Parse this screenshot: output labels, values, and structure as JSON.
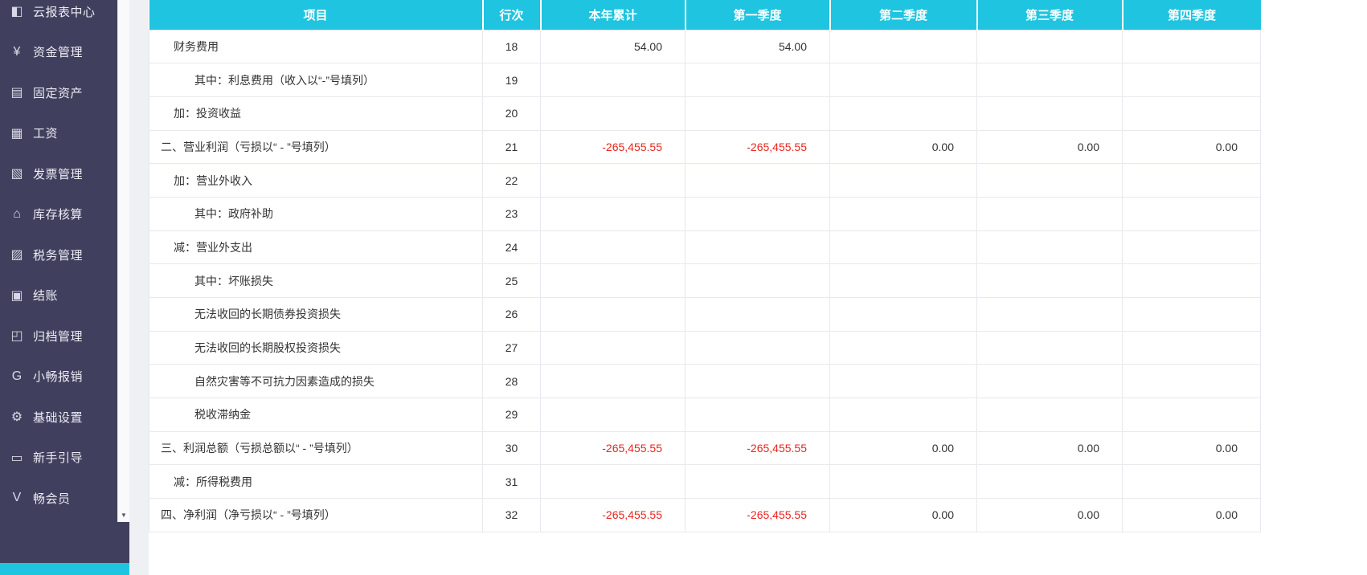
{
  "colors": {
    "accent_cyan": "#1fc4e0",
    "sidebar_bg": "#40405e",
    "negative_red": "#e8261f",
    "row_border": "#e8e8ee",
    "text_dark": "#333333"
  },
  "sidebar": {
    "items": [
      {
        "id": "cloud-report-center",
        "label": "云报表中心",
        "icon": "cloud-report-icon",
        "glyph": "◧"
      },
      {
        "id": "fund-management",
        "label": "资金管理",
        "icon": "fund-money-icon",
        "glyph": "¥"
      },
      {
        "id": "fixed-assets",
        "label": "固定资产",
        "icon": "fixed-assets-icon",
        "glyph": "▤"
      },
      {
        "id": "salary",
        "label": "工资",
        "icon": "salary-icon",
        "glyph": "▦"
      },
      {
        "id": "invoice-management",
        "label": "发票管理",
        "icon": "invoice-icon",
        "glyph": "▧"
      },
      {
        "id": "inventory-accounting",
        "label": "库存核算",
        "icon": "inventory-icon",
        "glyph": "⌂"
      },
      {
        "id": "tax-management",
        "label": "税务管理",
        "icon": "tax-icon",
        "glyph": "▨"
      },
      {
        "id": "closing",
        "label": "结账",
        "icon": "closing-icon",
        "glyph": "▣"
      },
      {
        "id": "archive-management",
        "label": "归档管理",
        "icon": "archive-icon",
        "glyph": "◰"
      },
      {
        "id": "xiaochang-reimburse",
        "label": "小畅报销",
        "icon": "reimburse-icon",
        "glyph": "G"
      },
      {
        "id": "basic-settings",
        "label": "基础设置",
        "icon": "settings-gear-icon",
        "glyph": "⚙"
      },
      {
        "id": "novice-guide",
        "label": "新手引导",
        "icon": "guide-icon",
        "glyph": "▭"
      },
      {
        "id": "chang-member",
        "label": "畅会员",
        "icon": "member-icon",
        "glyph": "V"
      }
    ],
    "scrollbar": {
      "arrow_glyph": "▼"
    }
  },
  "table": {
    "headers": [
      "项目",
      "行次",
      "本年累计",
      "第一季度",
      "第二季度",
      "第三季度",
      "第四季度"
    ],
    "rows": [
      {
        "item": "财务费用",
        "indent": 1,
        "line": "18",
        "values": [
          "54.00",
          "54.00",
          "",
          "",
          ""
        ]
      },
      {
        "item": "其中：利息费用（收入以“-”号填列）",
        "indent": 2,
        "line": "19",
        "values": [
          "",
          "",
          "",
          "",
          ""
        ]
      },
      {
        "item": "加：投资收益",
        "indent": 1,
        "line": "20",
        "values": [
          "",
          "",
          "",
          "",
          ""
        ]
      },
      {
        "item": "二、营业利润（亏损以“ - ”号填列）",
        "indent": 0,
        "line": "21",
        "values": [
          "-265,455.55",
          "-265,455.55",
          "0.00",
          "0.00",
          "0.00"
        ]
      },
      {
        "item": "加：营业外收入",
        "indent": 1,
        "line": "22",
        "values": [
          "",
          "",
          "",
          "",
          ""
        ]
      },
      {
        "item": "其中：政府补助",
        "indent": 2,
        "line": "23",
        "values": [
          "",
          "",
          "",
          "",
          ""
        ]
      },
      {
        "item": "减：营业外支出",
        "indent": 1,
        "line": "24",
        "values": [
          "",
          "",
          "",
          "",
          ""
        ]
      },
      {
        "item": "其中：坏账损失",
        "indent": 2,
        "line": "25",
        "values": [
          "",
          "",
          "",
          "",
          ""
        ]
      },
      {
        "item": "无法收回的长期债券投资损失",
        "indent": 2,
        "line": "26",
        "values": [
          "",
          "",
          "",
          "",
          ""
        ]
      },
      {
        "item": "无法收回的长期股权投资损失",
        "indent": 2,
        "line": "27",
        "values": [
          "",
          "",
          "",
          "",
          ""
        ]
      },
      {
        "item": "自然灾害等不可抗力因素造成的损失",
        "indent": 2,
        "line": "28",
        "values": [
          "",
          "",
          "",
          "",
          ""
        ]
      },
      {
        "item": "税收滞纳金",
        "indent": 2,
        "line": "29",
        "values": [
          "",
          "",
          "",
          "",
          ""
        ]
      },
      {
        "item": "三、利润总额（亏损总额以“ - ”号填列）",
        "indent": 0,
        "line": "30",
        "values": [
          "-265,455.55",
          "-265,455.55",
          "0.00",
          "0.00",
          "0.00"
        ]
      },
      {
        "item": "减：所得税费用",
        "indent": 1,
        "line": "31",
        "values": [
          "",
          "",
          "",
          "",
          ""
        ]
      },
      {
        "item": "四、净利润（净亏损以“ - ”号填列）",
        "indent": 0,
        "line": "32",
        "values": [
          "-265,455.55",
          "-265,455.55",
          "0.00",
          "0.00",
          "0.00"
        ]
      }
    ]
  }
}
